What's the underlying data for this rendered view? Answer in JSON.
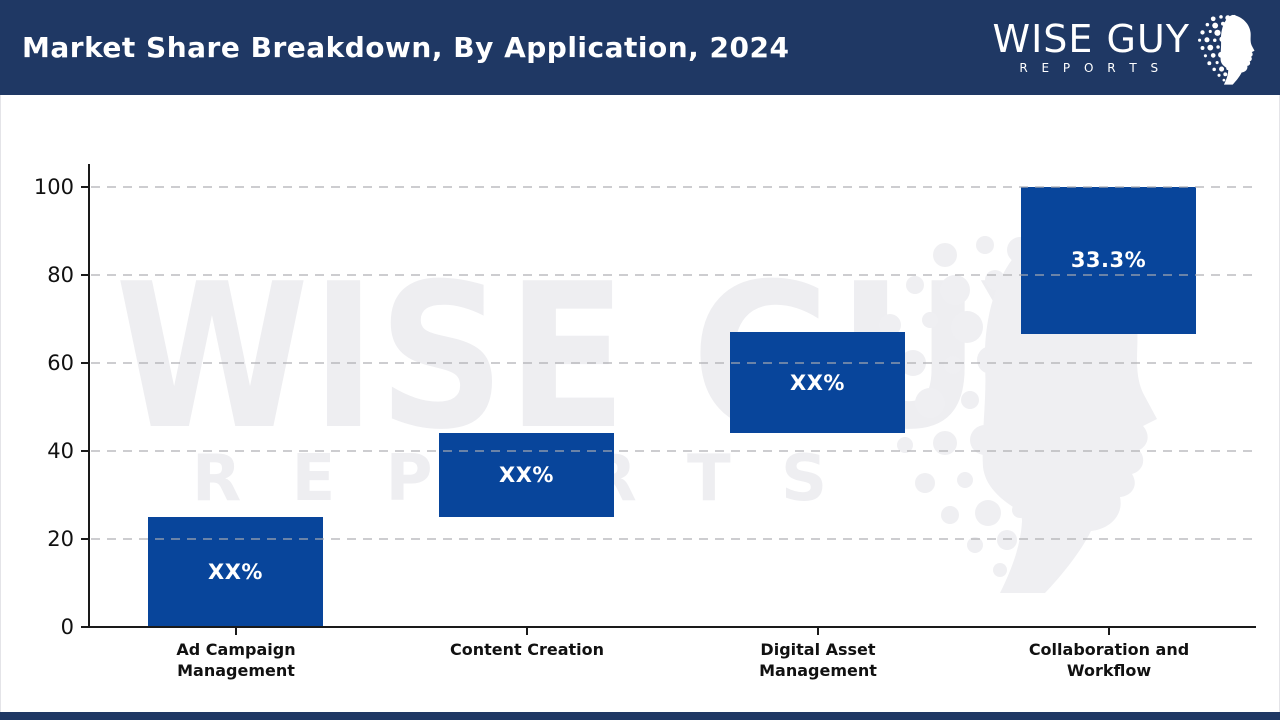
{
  "header": {
    "title": "Market Share Breakdown, By Application, 2024"
  },
  "logo": {
    "name": "WISE GUY",
    "tagline": "R E P O R T S"
  },
  "watermark": {
    "name": "WISE GUY",
    "tagline": "R E P O R T S"
  },
  "chart_data": {
    "type": "bar",
    "subtype": "floating-segment-waterfall",
    "title": "Market Share Breakdown, By Application, 2024",
    "categories": [
      "Ad Campaign Management",
      "Content Creation",
      "Digital Asset Management",
      "Collaboration and Workflow"
    ],
    "segments": [
      {
        "category": "Ad Campaign Management",
        "start": 0,
        "end": 25,
        "label": "XX%"
      },
      {
        "category": "Content Creation",
        "start": 25,
        "end": 44,
        "label": "XX%"
      },
      {
        "category": "Digital Asset Management",
        "start": 44,
        "end": 67,
        "label": "XX%"
      },
      {
        "category": "Collaboration and Workflow",
        "start": 66.7,
        "end": 100,
        "label": "33.3%"
      }
    ],
    "ylim": [
      0,
      100
    ],
    "yticks": [
      0,
      20,
      40,
      60,
      80,
      100
    ],
    "grid": "horizontal-dashed",
    "legend_visible": false,
    "bar_color": "#08459b",
    "label_color": "#ffffff"
  },
  "colors": {
    "header_bg": "#1f3864",
    "footer_bg": "#1f3864",
    "bar": "#08459b",
    "axis": "#1a1a1a",
    "grid": "#c9c9cd",
    "watermark": "#eeeef1",
    "title_text": "#ffffff"
  }
}
